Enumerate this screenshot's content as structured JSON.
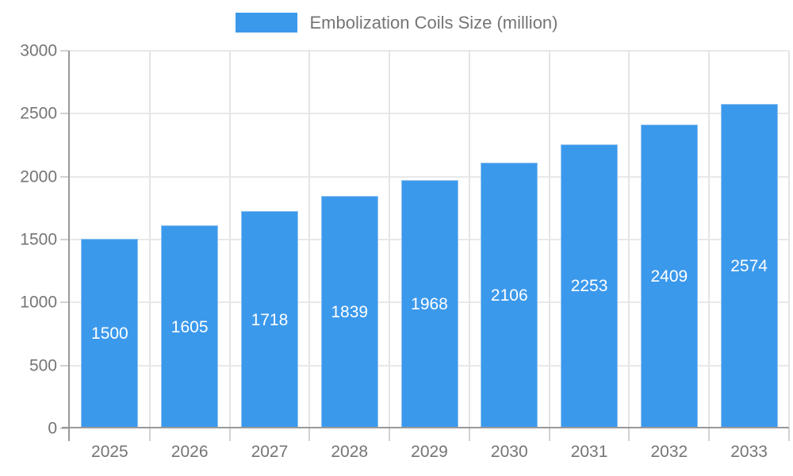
{
  "legend": {
    "label": "Embolization Coils Size (million)",
    "swatch_color": "#3B99EC"
  },
  "chart_data": {
    "type": "bar",
    "title": "Embolization Coils Size (million)",
    "categories": [
      "2025",
      "2026",
      "2027",
      "2028",
      "2029",
      "2030",
      "2031",
      "2032",
      "2033"
    ],
    "series": [
      {
        "name": "Embolization Coils Size (million)",
        "values": [
          1500,
          1605,
          1718,
          1839,
          1968,
          2106,
          2253,
          2409,
          2574
        ]
      }
    ],
    "value_labels": [
      "1500",
      "1605",
      "1718",
      "1839",
      "1968",
      "2106",
      "2253",
      "2409",
      "2574"
    ],
    "xlabel": "",
    "ylabel": "",
    "ylim": [
      0,
      3000
    ],
    "yticks": [
      0,
      500,
      1000,
      1500,
      2000,
      2500,
      3000
    ],
    "ytick_labels": [
      "0",
      "500",
      "1000",
      "1500",
      "2000",
      "2500",
      "3000"
    ],
    "grid": true,
    "legend_position": "top-center",
    "bar_color": "#3B99EC",
    "bar_label_color": "#ffffff",
    "axis_color": "#999999",
    "grid_color": "#e8e8e8",
    "tick_label_color": "#757575"
  }
}
